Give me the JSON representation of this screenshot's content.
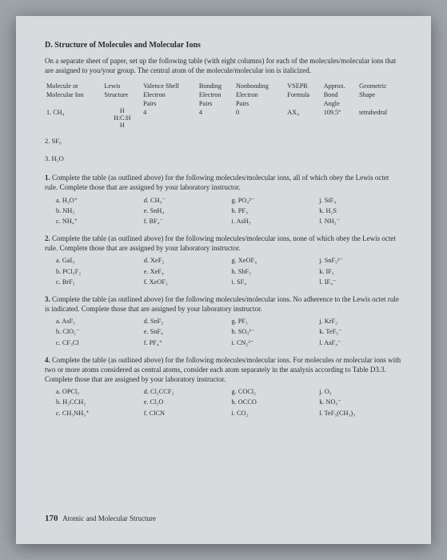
{
  "section_letter": "D.",
  "section_title": "Structure of Molecules and Molecular Ions",
  "intro": "On a separate sheet of paper, set up the following table (with eight columns) for each of the molecules/molecular ions that are assigned to you/your group. The central atom of the molecule/molecular ion is italicized.",
  "table": {
    "headers": [
      [
        "Molecule or",
        "Molecular Ion"
      ],
      [
        "Lewis",
        "Structure"
      ],
      [
        "Valence Shell",
        "Electron",
        "Pairs"
      ],
      [
        "Bonding",
        "Electron",
        "Pairs"
      ],
      [
        "Nonbonding",
        "Electron",
        "Pairs"
      ],
      [
        "VSEPR",
        "Formula"
      ],
      [
        "Approx.",
        "Bond",
        "Angle"
      ],
      [
        "Geometric",
        "Shape"
      ]
    ],
    "example_row": {
      "molecule": "1. CH₄",
      "lewis": [
        "H",
        "H:C:H",
        "H"
      ],
      "vse": "4",
      "bep": "4",
      "nbep": "0",
      "vsepr": "AX₄",
      "angle": "109.5°",
      "shape": "tetrahedral"
    },
    "extra_rows": [
      "2. SF₆",
      "3. H₂O"
    ]
  },
  "questions": [
    {
      "n": "1.",
      "text": "Complete the table (as outlined above) for the following molecules/molecular ions, all of which obey the Lewis octet rule. Complete those that are assigned by your laboratory instructor.",
      "items": [
        "a. H₃O⁺",
        "d. CH₃⁻",
        "g. PO₄³⁻",
        "j. SiF₄",
        "b. NH₃",
        "e. SnH₄",
        "h. PF₃",
        "k. H₂S",
        "c. NH₄⁺",
        "f. BF₄⁻",
        "i. AsH₃",
        "l. NH₂⁻"
      ]
    },
    {
      "n": "2.",
      "text": "Complete the table (as outlined above) for the following molecules/molecular ions, none of which obey the Lewis octet rule. Complete those that are assigned by your laboratory instructor.",
      "items": [
        "a. GaI₃",
        "d. XeF₂",
        "g. XeOF₄",
        "j. SnF₅²⁻",
        "b. PCl₃F₂",
        "e. XeF₄",
        "h. SbF₅",
        "k. IF₅",
        "c. BrF₅",
        "f. XeOF₂",
        "i. SF₄",
        "l. IF₄⁻"
      ]
    },
    {
      "n": "3.",
      "text": "Complete the table (as outlined above) for the following molecules/molecular ions. No adherence to the Lewis octet rule is indicated. Complete those that are assigned by your laboratory instructor.",
      "items": [
        "a. AsF₅",
        "d. SnF₂",
        "g. PF₅",
        "j. KrF₂",
        "b. ClO₂⁻",
        "e. SnF₄",
        "h. SO₃²⁻",
        "k. TeF₅⁻",
        "c. CF₃Cl",
        "f. PF₄⁺",
        "i. CN₂²⁻",
        "l. AsF₄⁻"
      ]
    },
    {
      "n": "4.",
      "text": "Complete the table (as outlined above) for the following molecules/molecular ions. For molecules or molecular ions with two or more atoms considered as central atoms, consider each atom separately in the analysis according to Table D3.3. Complete those that are assigned by your laboratory instructor.",
      "items": [
        "a. OPCl₃",
        "d. Cl₂CCF₂",
        "g. COCl₂",
        "j. O₃",
        "b. H₂CCH₂",
        "e. Cl₂O",
        "h. OCCO",
        "k. NO₃⁻",
        "c. CH₃NH₃⁺",
        "f. ClCN",
        "i. CO₂",
        "l. TeF₅(CH₃)₃"
      ]
    }
  ],
  "footer_page": "170",
  "footer_text": "Atomic and Molecular Structure"
}
